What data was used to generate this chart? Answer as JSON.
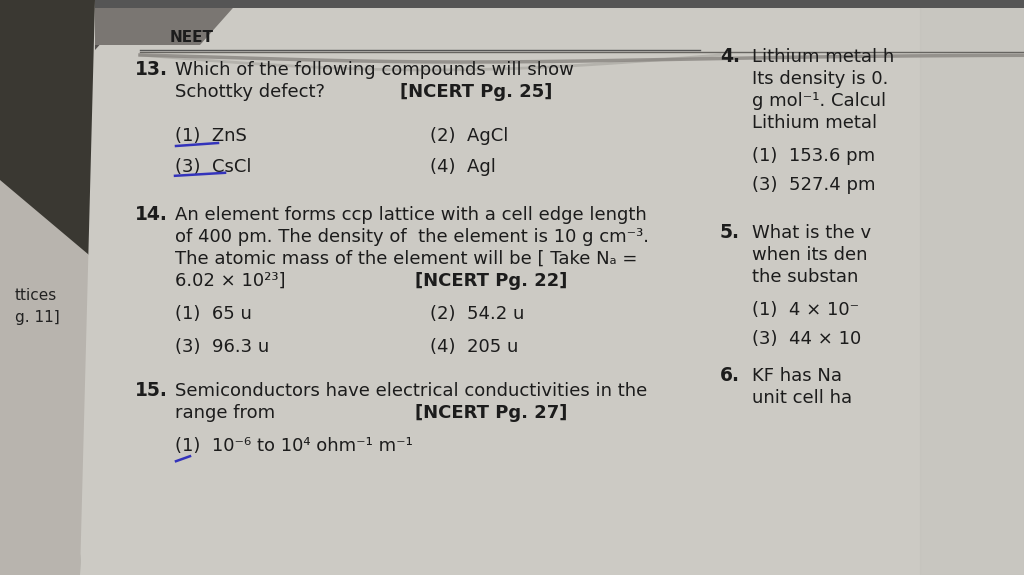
{
  "neet_label": "NEET",
  "q13_num": "13.",
  "q13_line1": "Which of the following compounds will show",
  "q13_line2": "Schottky defect?",
  "q13_ref": "[NCERT Pg. 25]",
  "q13_o1": "(1)  ZnS",
  "q13_o2": "(2)  AgCl",
  "q13_o3": "(3)  CsCl",
  "q13_o4": "(4)  Agl",
  "q14_num": "14.",
  "q14_l1": "An element forms ccp lattice with a cell edge length",
  "q14_l2": "of 400 pm. The density of  the element is 10 g cm⁻³.",
  "q14_l3": "The atomic mass of the element will be [ Take Nₐ =",
  "q14_l4": "6.02 × 10²³]",
  "q14_ref": "[NCERT Pg. 22]",
  "q14_o1": "(1)  65 u",
  "q14_o2": "(2)  54.2 u",
  "q14_o3": "(3)  96.3 u",
  "q14_o4": "(4)  205 u",
  "q15_num": "15.",
  "q15_l1": "Semiconductors have electrical conductivities in the",
  "q15_l2": "range from",
  "q15_ref": "[NCERT Pg. 27]",
  "q15_o1": "(1)  10⁻⁶ to 10⁴ ohm⁻¹ m⁻¹",
  "r4_num": "4.",
  "r4_l1": "Lithium metal h",
  "r4_l2": "Its density is 0.",
  "r4_l3": "g mol⁻¹. Calcul",
  "r4_l4": "Lithium metal",
  "r4_o1": "(1)  153.6 pm",
  "r4_o3": "(3)  527.4 pm",
  "r5_num": "5.",
  "r5_l1": "What is the v",
  "r5_l2": "when its den",
  "r5_l3": "the substan",
  "r5_o1": "(1)  4 × 10⁻",
  "r5_o3": "(3)  44 × 10",
  "r6_num": "6.",
  "r6_l1": "KF has Na",
  "r6_l2": "unit cell ha",
  "left_t1": "ttices",
  "left_t2": "g. 11]",
  "spine_color": "#3a3832",
  "left_page_color": "#b8b4ae",
  "main_page_color": "#cccac4",
  "bg_color": "#8a8680",
  "text_color": "#1c1c1c",
  "tab_color": "#6e6a64",
  "tab_text": "NEET",
  "curve_line_color": "#9a9690"
}
